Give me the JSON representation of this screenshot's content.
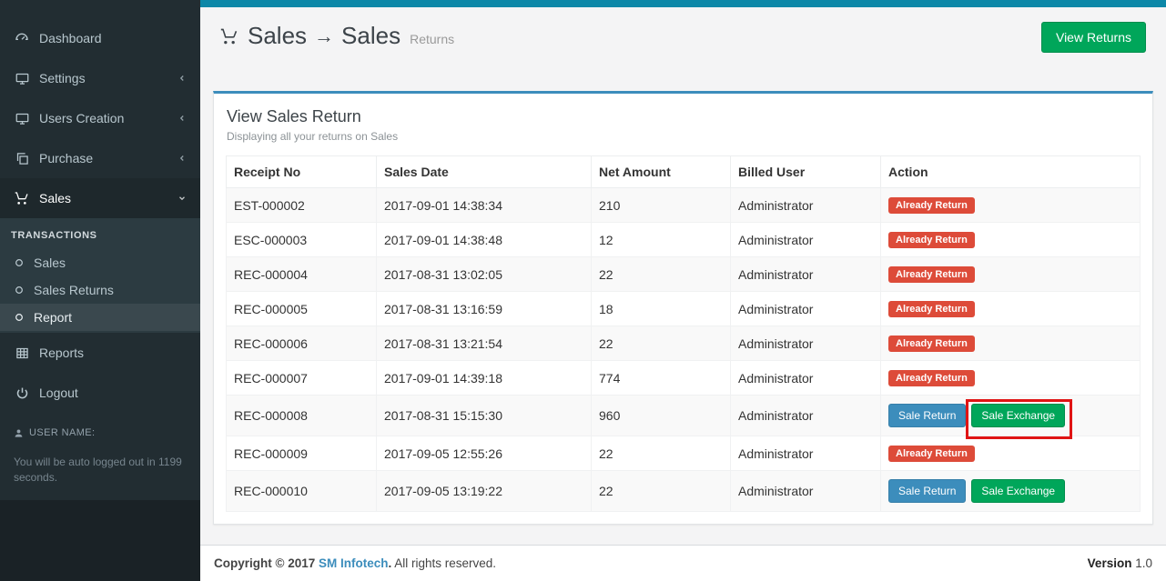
{
  "sidebar": {
    "items": [
      {
        "label": "Dashboard"
      },
      {
        "label": "Settings"
      },
      {
        "label": "Users Creation"
      },
      {
        "label": "Purchase"
      },
      {
        "label": "Sales"
      }
    ],
    "section_label": "TRANSACTIONS",
    "sub_items": [
      {
        "label": "Sales"
      },
      {
        "label": "Sales Returns"
      },
      {
        "label": "Report"
      }
    ],
    "lower_items": [
      {
        "label": "Reports"
      },
      {
        "label": "Logout"
      }
    ],
    "user_label": "USER NAME:",
    "logout_notice": "You will be auto logged out in 1199 seconds."
  },
  "header": {
    "title_primary": "Sales",
    "title_secondary": "Sales",
    "title_sub": "Returns",
    "arrow_icon": "→",
    "view_returns_button": "View Returns"
  },
  "panel": {
    "title": "View Sales Return",
    "subtitle": "Displaying all your returns on Sales"
  },
  "table": {
    "columns": [
      "Receipt No",
      "Sales Date",
      "Net Amount",
      "Billed User",
      "Action"
    ],
    "badge_label": "Already Return",
    "sale_return_label": "Sale Return",
    "sale_exchange_label": "Sale Exchange",
    "rows": [
      {
        "receipt_no": "EST-000002",
        "sales_date": "2017-09-01 14:38:34",
        "net_amount": "210",
        "billed_user": "Administrator",
        "action": "already_return",
        "highlighted": false
      },
      {
        "receipt_no": "ESC-000003",
        "sales_date": "2017-09-01 14:38:48",
        "net_amount": "12",
        "billed_user": "Administrator",
        "action": "already_return",
        "highlighted": false
      },
      {
        "receipt_no": "REC-000004",
        "sales_date": "2017-08-31 13:02:05",
        "net_amount": "22",
        "billed_user": "Administrator",
        "action": "already_return",
        "highlighted": false
      },
      {
        "receipt_no": "REC-000005",
        "sales_date": "2017-08-31 13:16:59",
        "net_amount": "18",
        "billed_user": "Administrator",
        "action": "already_return",
        "highlighted": false
      },
      {
        "receipt_no": "REC-000006",
        "sales_date": "2017-08-31 13:21:54",
        "net_amount": "22",
        "billed_user": "Administrator",
        "action": "already_return",
        "highlighted": false
      },
      {
        "receipt_no": "REC-000007",
        "sales_date": "2017-09-01 14:39:18",
        "net_amount": "774",
        "billed_user": "Administrator",
        "action": "already_return",
        "highlighted": false
      },
      {
        "receipt_no": "REC-000008",
        "sales_date": "2017-08-31 15:15:30",
        "net_amount": "960",
        "billed_user": "Administrator",
        "action": "buttons",
        "highlighted": true
      },
      {
        "receipt_no": "REC-000009",
        "sales_date": "2017-09-05 12:55:26",
        "net_amount": "22",
        "billed_user": "Administrator",
        "action": "already_return",
        "highlighted": false
      },
      {
        "receipt_no": "REC-000010",
        "sales_date": "2017-09-05 13:19:22",
        "net_amount": "22",
        "billed_user": "Administrator",
        "action": "buttons",
        "highlighted": false
      }
    ]
  },
  "footer": {
    "copyright_prefix": "Copyright © 2017 ",
    "company": "SM Infotech",
    "copyright_dot": ".",
    "copyright_suffix": " All rights reserved.",
    "version_label": "Version",
    "version_value": "1.0"
  },
  "colors": {
    "top_bar": "#0c87a7",
    "sidebar_bg": "#222d32",
    "accent_green": "#00a65a",
    "accent_blue": "#3c8dbc",
    "danger_red": "#dd4b39",
    "annotation_red": "#e01414",
    "panel_border_blue": "#3c8dbc"
  }
}
